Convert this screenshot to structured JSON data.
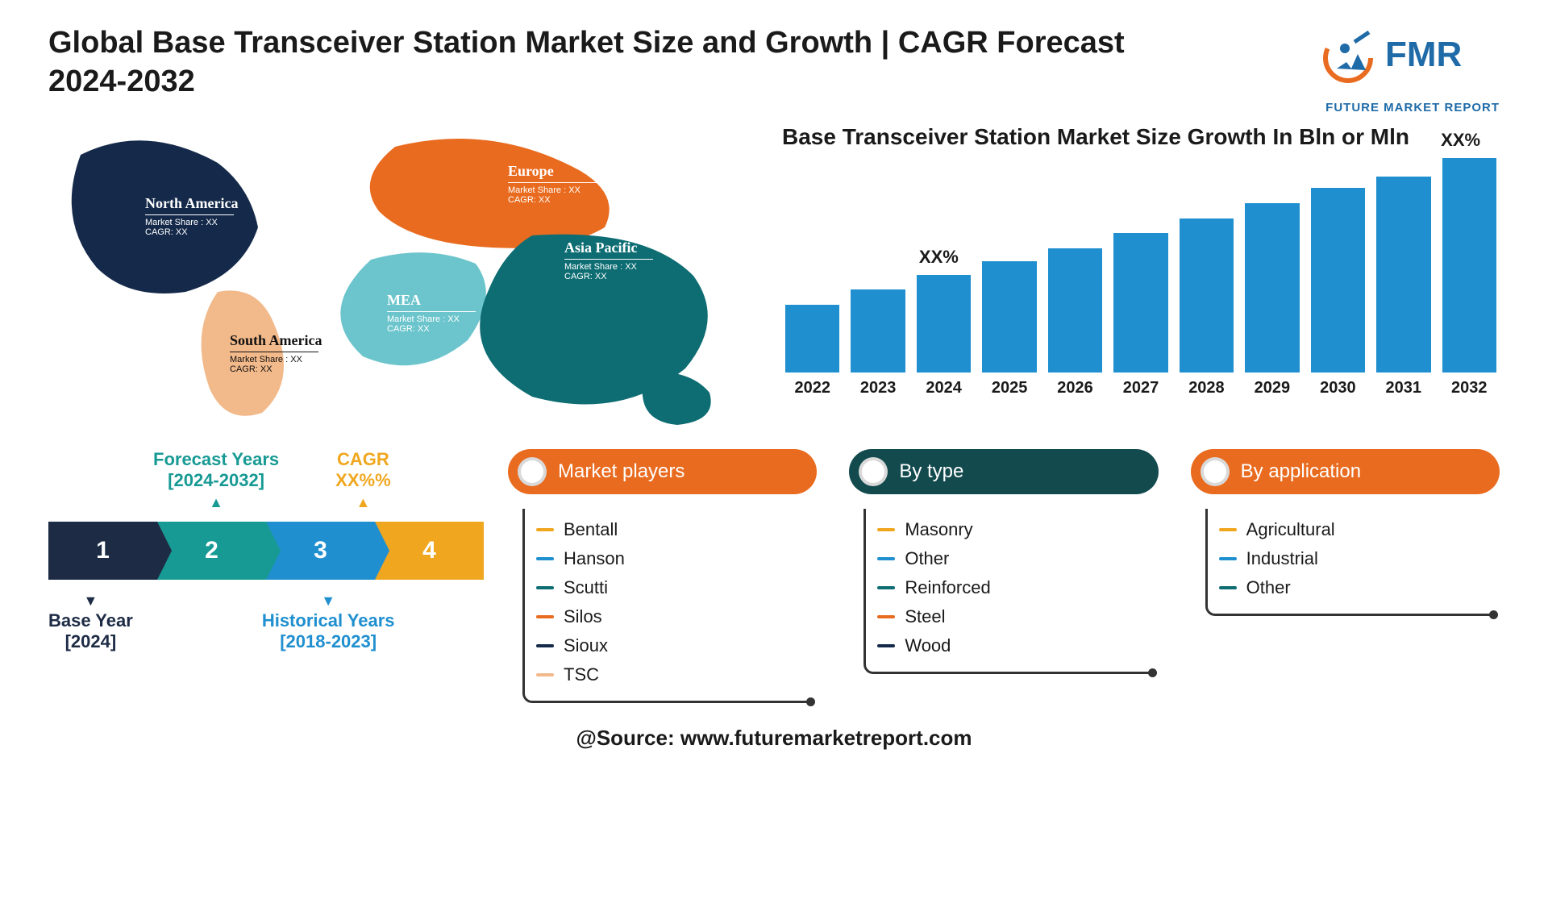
{
  "title": "Global Base Transceiver Station Market Size and Growth | CAGR Forecast 2024-2032",
  "logo": {
    "name": "FMR",
    "tagline": "FUTURE MARKET REPORT",
    "color_orange": "#e96b1f",
    "color_blue": "#1f6ba8"
  },
  "map": {
    "regions": [
      {
        "name": "North America",
        "share": "Market Share : XX",
        "cagr": "CAGR: XX",
        "color": "#152a4a"
      },
      {
        "name": "South America",
        "share": "Market Share : XX",
        "cagr": "CAGR: XX",
        "color": "#f2b98a"
      },
      {
        "name": "Europe",
        "share": "Market Share : XX",
        "cagr": "CAGR: XX",
        "color": "#e96b1f"
      },
      {
        "name": "MEA",
        "share": "Market Share : XX",
        "cagr": "CAGR: XX",
        "color": "#6cc5cc"
      },
      {
        "name": "Asia Pacific",
        "share": "Market Share : XX",
        "cagr": "CAGR: XX",
        "color": "#0d6d73"
      }
    ]
  },
  "bar_chart": {
    "title": "Base Transceiver Station Market Size Growth In Bln or Mln",
    "type": "bar",
    "categories": [
      "2022",
      "2023",
      "2024",
      "2025",
      "2026",
      "2027",
      "2028",
      "2029",
      "2030",
      "2031",
      "2032"
    ],
    "values": [
      90,
      110,
      130,
      148,
      165,
      185,
      205,
      225,
      245,
      260,
      285
    ],
    "ylim": [
      0,
      300
    ],
    "bar_color": "#1f8fcf",
    "background_color": "#ffffff",
    "label_fontsize": 20,
    "annotations": [
      {
        "text": "XX%",
        "index": 2
      },
      {
        "text": "XX%",
        "index": 10
      }
    ]
  },
  "timeline": {
    "top_labels": [
      {
        "text": "Forecast Years",
        "sub": "[2024-2032]",
        "color": "#179a94",
        "arrow": "▲"
      },
      {
        "text": "CAGR",
        "sub": "XX%%",
        "color": "#f0a71f",
        "arrow": "▲"
      }
    ],
    "segments": [
      {
        "num": "1",
        "bg": "#1d2b45"
      },
      {
        "num": "2",
        "bg": "#179a94"
      },
      {
        "num": "3",
        "bg": "#1f8fcf"
      },
      {
        "num": "4",
        "bg": "#f0a71f"
      }
    ],
    "bottom_labels": [
      {
        "text": "Base Year",
        "sub": "[2024]",
        "color": "#1d2b45",
        "arrow": "▼"
      },
      {
        "text": "Historical Years",
        "sub": "[2018-2023]",
        "color": "#1f8fcf",
        "arrow": "▼"
      }
    ]
  },
  "categories": [
    {
      "header": "Market players",
      "header_bg": "#e96b1f",
      "items": [
        {
          "label": "Bentall",
          "tick": "#f0a71f"
        },
        {
          "label": "Hanson",
          "tick": "#1f8fcf"
        },
        {
          "label": "Scutti",
          "tick": "#0d6d73"
        },
        {
          "label": "Silos",
          "tick": "#e96b1f"
        },
        {
          "label": "Sioux",
          "tick": "#152a4a"
        },
        {
          "label": "TSC",
          "tick": "#f2b98a"
        }
      ]
    },
    {
      "header": "By type",
      "header_bg": "#124a4e",
      "items": [
        {
          "label": "Masonry",
          "tick": "#f0a71f"
        },
        {
          "label": "Other",
          "tick": "#1f8fcf"
        },
        {
          "label": "Reinforced",
          "tick": "#0d6d73"
        },
        {
          "label": "Steel",
          "tick": "#e96b1f"
        },
        {
          "label": "Wood",
          "tick": "#152a4a"
        }
      ]
    },
    {
      "header": "By application",
      "header_bg": "#e96b1f",
      "items": [
        {
          "label": "Agricultural",
          "tick": "#f0a71f"
        },
        {
          "label": "Industrial",
          "tick": "#1f8fcf"
        },
        {
          "label": "Other",
          "tick": "#0d6d73"
        }
      ]
    }
  ],
  "source": "@Source: www.futuremarketreport.com"
}
